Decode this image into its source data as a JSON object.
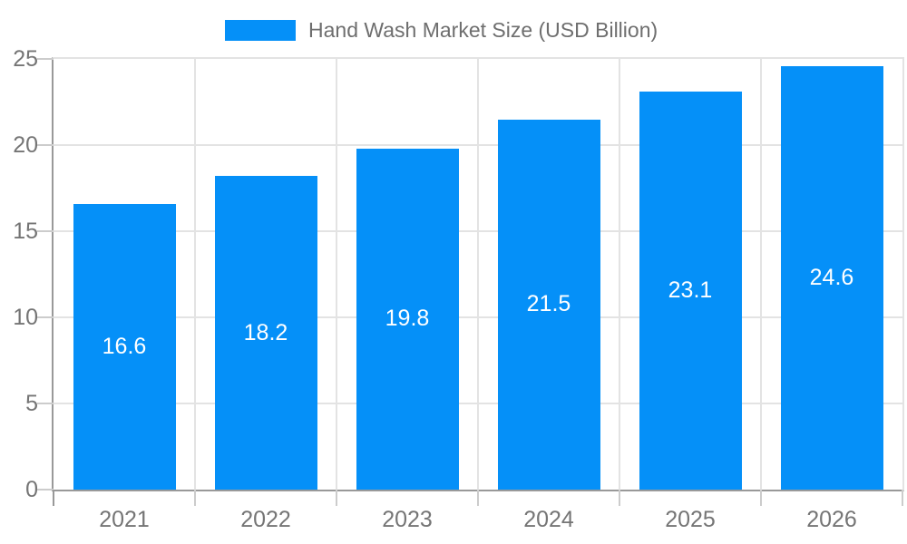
{
  "legend": {
    "label": "Hand Wash Market Size (USD Billion)"
  },
  "chart_data": {
    "type": "bar",
    "title": "Hand Wash Market Size (USD Billion)",
    "categories": [
      "2021",
      "2022",
      "2023",
      "2024",
      "2025",
      "2026"
    ],
    "values": [
      16.6,
      18.2,
      19.8,
      21.5,
      23.1,
      24.6
    ],
    "value_labels": [
      "16.6",
      "18.2",
      "19.8",
      "21.5",
      "23.1",
      "24.6"
    ],
    "xlabel": "",
    "ylabel": "",
    "ylim": [
      0,
      25
    ],
    "yticks": [
      0,
      5,
      10,
      15,
      20,
      25
    ],
    "grid": true,
    "legend_position": "top",
    "colors": {
      "bar": "#0590f8",
      "annotation_text": "#ffffff",
      "axis_text": "#757575",
      "legend_text": "#6e6e6e",
      "gridline": "#e3e3e3",
      "axis_line": "#999999",
      "tick": "#cccccc",
      "background": "#ffffff"
    }
  }
}
